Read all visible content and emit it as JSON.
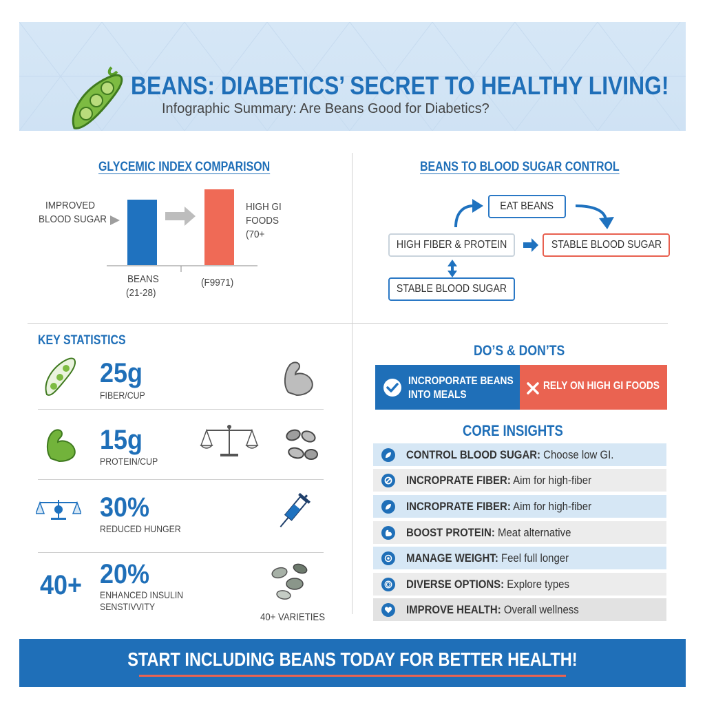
{
  "header": {
    "title": "BEANS: DIABETICS’ SECRET TO HEALTHY LIVING!",
    "subtitle": "Infographic Summary: Are Beans Good for Diabetics?"
  },
  "gi": {
    "title": "GLYCEMIC INDEX COMPARISON",
    "left_label_1": "IMPROVED",
    "left_label_2": "BLOOD SUGAR",
    "right_label_1": "HIGH GI",
    "right_label_2": "FOODS",
    "right_label_3": "(70+",
    "beans_label_1": "BEANS",
    "beans_label_2": "(21-28)",
    "high_label": "(F9971)",
    "colors": {
      "beans": "#1f72bf",
      "high": "#ef6a56"
    }
  },
  "flow": {
    "title": "BEANS TO BLOOD SUGAR CONTROL",
    "eat": "EAT BEANS",
    "fiber": "HIGH FIBER & PROTEIN",
    "stable_right": "STABLE BLOOD SUGAR",
    "stable_bottom": "STABLE BLOOD SUGAR"
  },
  "stats": {
    "title": "KEY STATISTICS",
    "items": [
      {
        "value": "25g",
        "label": "FIBER/CUP"
      },
      {
        "value": "15g",
        "label": "PROTEIN/CUP"
      },
      {
        "value": "30%",
        "label": "REDUCED HUNGER"
      },
      {
        "value": "20%",
        "label_1": "ENHANCED INSULIN",
        "label_2": "SENSTIVVITY"
      }
    ],
    "big_number": "40+",
    "varieties": "40+ VARIETIES"
  },
  "dos_donts": {
    "title": "DO’S & DON’TS",
    "do_1": "INCROPORATE BEANS",
    "do_2": "INTO MEALS",
    "dont": "RELY ON HIGH GI FOODS"
  },
  "insights": {
    "title": "CORE INSIGHTS",
    "rows": [
      {
        "bold": "CONTROL BLOOD SUGAR:",
        "text": " Choose low GI."
      },
      {
        "bold": "INCROPRATE FIBER:",
        "text": " Aim for high-fiber"
      },
      {
        "bold": "INCROPRATE FIBER:",
        "text": " Aim for high-fiber"
      },
      {
        "bold": "BOOST PROTEIN:",
        "text": " Meat alternative"
      },
      {
        "bold": "MANAGE WEIGHT:",
        "text": " Feel full longer"
      },
      {
        "bold": "DIVERSE OPTIONS:",
        "text": "  Explore types"
      },
      {
        "bold": "IMPROVE HEALTH:",
        "text": "  Overall wellness"
      }
    ]
  },
  "footer": {
    "text": "START INCLUDING BEANS TODAY FOR BETTER HEALTH!"
  }
}
